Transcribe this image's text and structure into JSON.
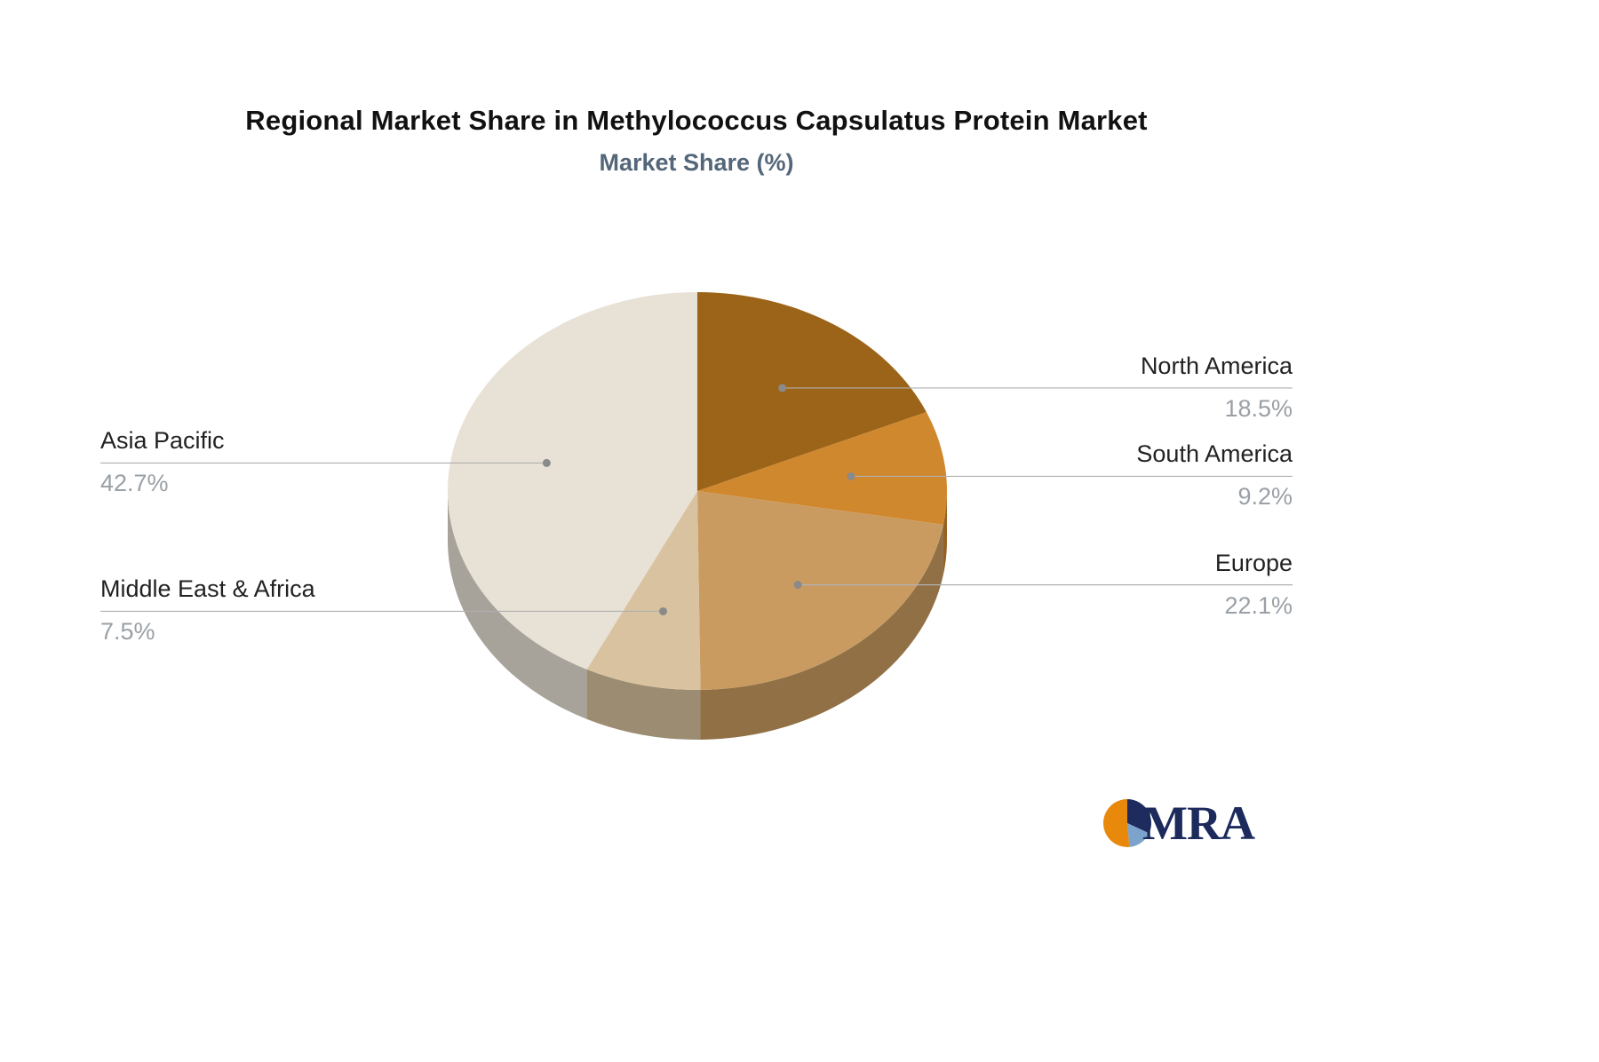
{
  "header": {
    "title": "Regional Market Share in Methylococcus Capsulatus Protein Market",
    "subtitle": "Market Share (%)"
  },
  "chart_data": {
    "type": "pie",
    "style": "3d",
    "title": "Regional Market Share in Methylococcus Capsulatus Protein Market",
    "subtitle": "Market Share (%)",
    "unit": "%",
    "direction": "clockwise",
    "start_angle_deg": 0,
    "slices": [
      {
        "label": "North America",
        "value": 18.5,
        "display": "18.5%",
        "color": "#9c6418"
      },
      {
        "label": "South America",
        "value": 9.2,
        "display": "9.2%",
        "color": "#d0882f"
      },
      {
        "label": "Europe",
        "value": 22.1,
        "display": "22.1%",
        "color": "#c99b61"
      },
      {
        "label": "Middle East & Africa",
        "value": 7.5,
        "display": "7.5%",
        "color": "#d9c29f"
      },
      {
        "label": "Asia Pacific",
        "value": 42.7,
        "display": "42.7%",
        "color": "#e8e1d6"
      }
    ],
    "leader_line_color": "#b0b0b0",
    "leader_dot_color": "#8a8a8a",
    "label_color": "#222222",
    "value_color": "#9aa0a6"
  },
  "logo": {
    "text": "MRA",
    "orange": "#e8890c",
    "navy": "#1e2b5e",
    "blue": "#7ba3cc"
  }
}
